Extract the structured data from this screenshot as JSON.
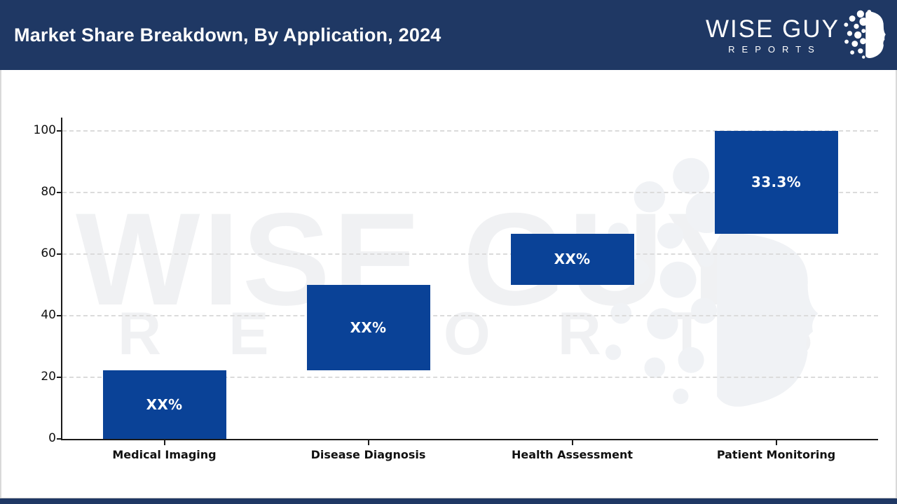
{
  "header": {
    "title": "Market Share Breakdown, By Application, 2024",
    "bg_color": "#1f3864",
    "logo": {
      "line1": "WISE GUY",
      "line2": "REPORTS"
    }
  },
  "watermark": {
    "line1": "WISE GUY",
    "line2": "REPORTS"
  },
  "chart_data": {
    "type": "bar",
    "subtype": "waterfall-segments",
    "title": "Market Share Breakdown, By Application, 2024",
    "xlabel": "",
    "ylabel": "",
    "ylim": [
      0,
      105
    ],
    "yticks": [
      0,
      20,
      40,
      60,
      80,
      100
    ],
    "grid": "horizontal-dashed",
    "legend": "none",
    "bar_color": "#0a4297",
    "categories": [
      "Medical Imaging",
      "Disease Diagnosis",
      "Health Assessment",
      "Patient Monitoring"
    ],
    "segments": [
      {
        "category": "Medical Imaging",
        "start": 0,
        "end": 22.2,
        "value": 22.2,
        "label": "XX%"
      },
      {
        "category": "Disease Diagnosis",
        "start": 22.2,
        "end": 50.0,
        "value": 27.8,
        "label": "XX%"
      },
      {
        "category": "Health Assessment",
        "start": 50.0,
        "end": 66.7,
        "value": 16.7,
        "label": "XX%"
      },
      {
        "category": "Patient Monitoring",
        "start": 66.7,
        "end": 100.0,
        "value": 33.3,
        "label": "33.3%"
      }
    ]
  }
}
